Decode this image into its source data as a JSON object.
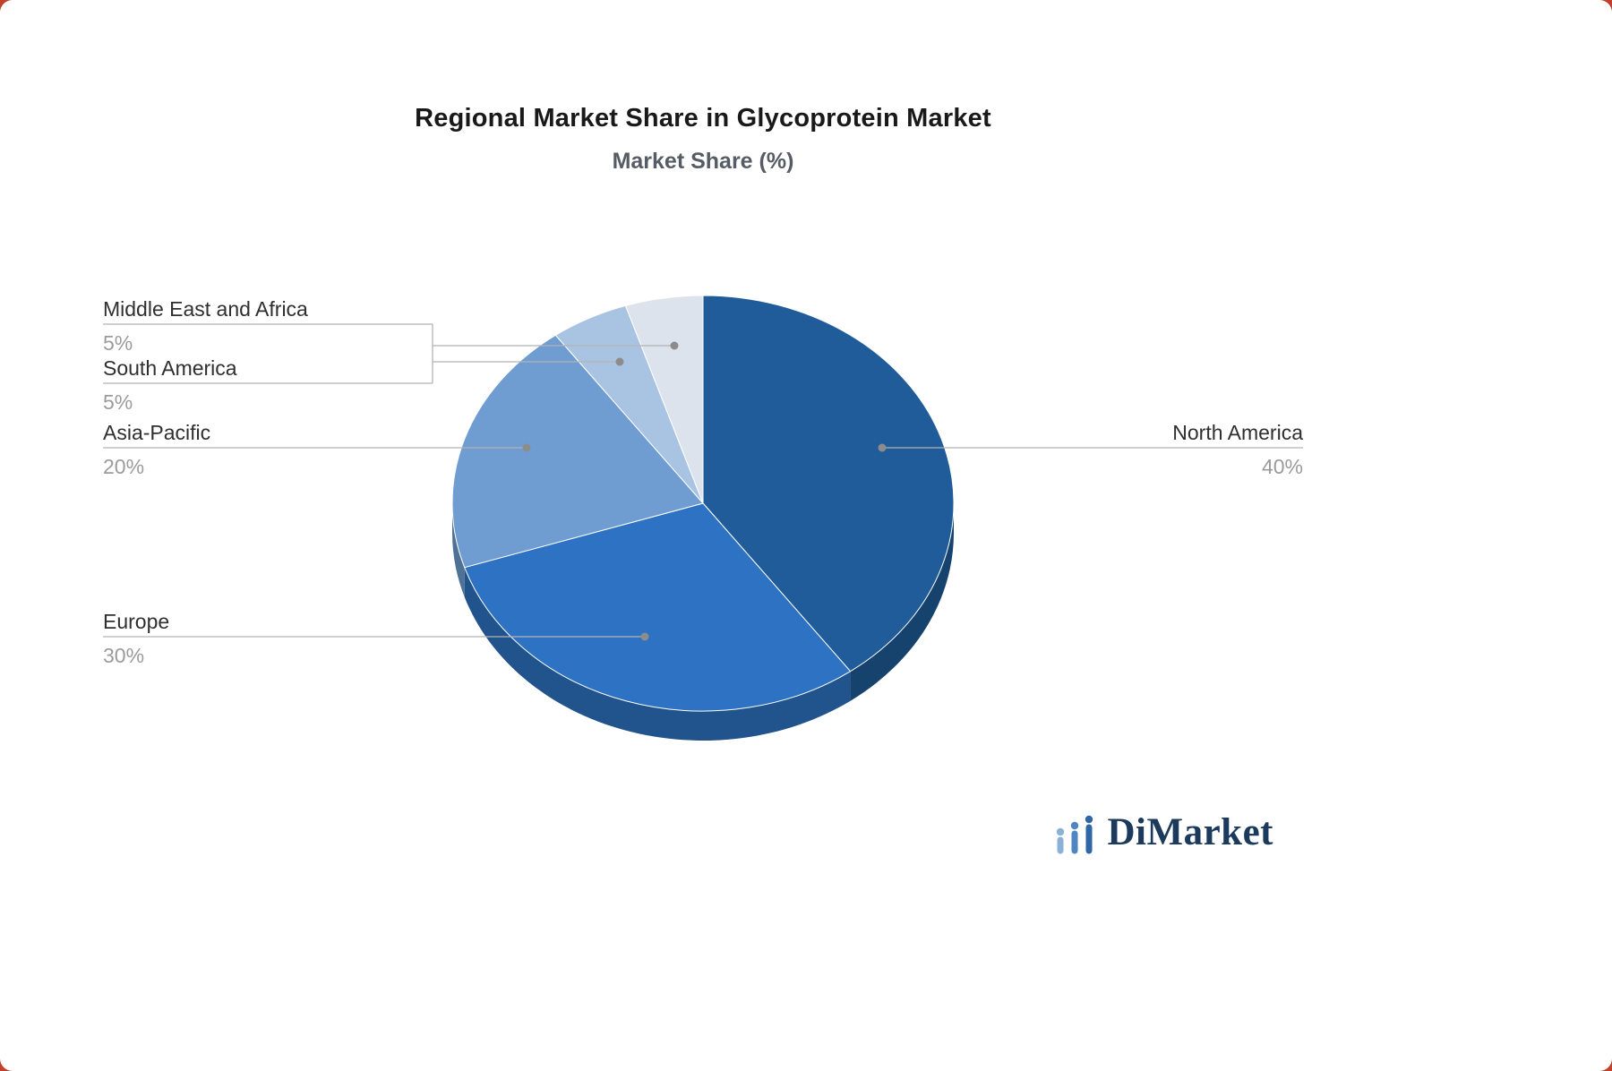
{
  "chart_data": {
    "type": "pie",
    "title": "Regional Market Share in Glycoprotein Market",
    "subtitle": "Market Share (%)",
    "unit": "%",
    "categories": [
      "North America",
      "Europe",
      "Asia-Pacific",
      "South America",
      "Middle East and Africa"
    ],
    "values": [
      40,
      30,
      20,
      5,
      5
    ],
    "display_values": [
      "40%",
      "30%",
      "20%",
      "5%",
      "5%"
    ],
    "colors": [
      "#1f5c99",
      "#2e73c3",
      "#6f9dd1",
      "#a9c4e3",
      "#dde3ec"
    ],
    "start_angle": 0,
    "direction": "clockwise",
    "style": "3d",
    "legend": "none"
  },
  "branding": {
    "logo_text": "DiMarket",
    "logo_icon": "bar-chart-dots-icon",
    "logo_text_color": "#1b3a5c",
    "logo_icon_color_dark": "#2f66a5",
    "logo_icon_color_mid": "#4f86c2",
    "logo_icon_color_light": "#8ab2d8"
  }
}
